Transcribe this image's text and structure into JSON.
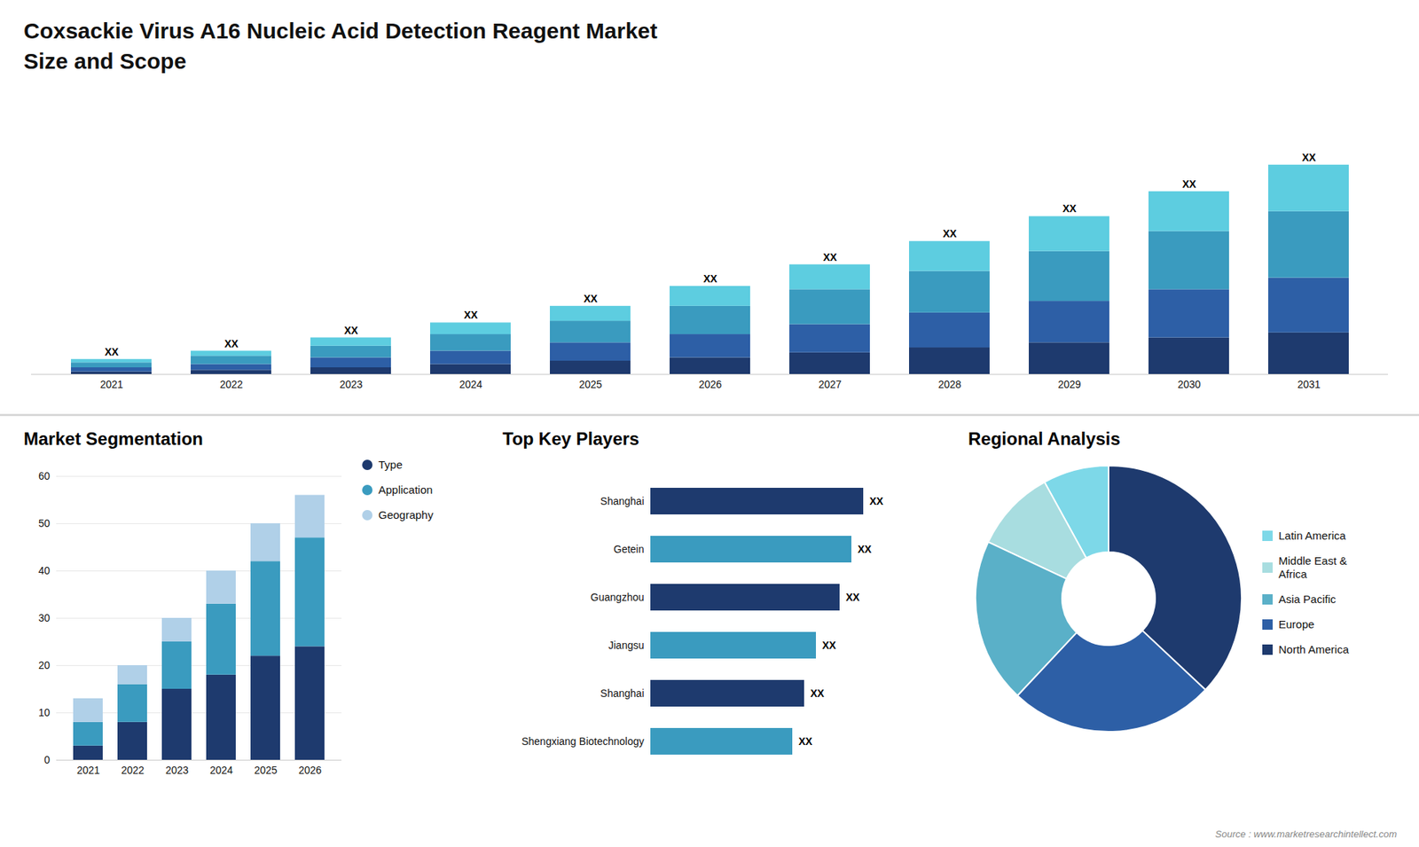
{
  "title": "Coxsackie Virus A16 Nucleic Acid Detection Reagent Market\nSize and Scope",
  "caption": "Source : www.marketresearchintellect.com",
  "chart_data": [
    {
      "type": "bar",
      "stacked": true,
      "categories": [
        "2021",
        "2022",
        "2023",
        "2024",
        "2025",
        "2026",
        "2027",
        "2028",
        "2029",
        "2030",
        "2031"
      ],
      "series": [
        {
          "color": "#1e3a6e",
          "values": [
            1.5,
            2.5,
            4,
            6,
            8,
            10,
            13,
            16,
            19,
            22,
            25
          ]
        },
        {
          "color": "#2d5fa6",
          "values": [
            2.5,
            3.5,
            6,
            8,
            11,
            14,
            17,
            21,
            25,
            29,
            33
          ]
        },
        {
          "color": "#3a9bbf",
          "values": [
            3,
            5,
            7,
            10,
            13,
            17,
            21,
            25,
            30,
            35,
            40
          ]
        },
        {
          "color": "#5dcde0",
          "values": [
            2,
            3,
            5,
            7,
            9,
            12,
            15,
            18,
            21,
            24,
            28
          ]
        }
      ],
      "totals": [
        9,
        14,
        22,
        31,
        41,
        53,
        66,
        80,
        95,
        110,
        126
      ],
      "total_labels": [
        "XX",
        "XX",
        "XX",
        "XX",
        "XX",
        "XX",
        "XX",
        "XX",
        "XX",
        "XX",
        "XX"
      ],
      "data_labels": true,
      "ylim": [
        0,
        157.5
      ],
      "tick_labels": "x",
      "grid": false
    },
    {
      "type": "bar",
      "title": "Market Segmentation",
      "stacked": true,
      "categories": [
        "2021",
        "2022",
        "2023",
        "2024",
        "2025",
        "2026"
      ],
      "series": [
        {
          "name": "Type",
          "color": "#1e3a6e",
          "values": [
            3,
            8,
            15,
            18,
            22,
            24
          ]
        },
        {
          "name": "Application",
          "color": "#3a9bbf",
          "values": [
            5,
            8,
            10,
            15,
            20,
            23
          ]
        },
        {
          "name": "Geography",
          "color": "#b0d0e8",
          "values": [
            5,
            4,
            5,
            7,
            8,
            9
          ]
        }
      ],
      "ylim": [
        0,
        60
      ],
      "yticks": [
        0,
        10,
        20,
        30,
        40,
        50,
        60
      ],
      "grid": true,
      "legend": "right"
    },
    {
      "type": "bar",
      "title": "Top Key Players",
      "orientation": "horizontal",
      "categories": [
        "Shanghai",
        "Getein",
        "Guangzhou",
        "Jiangsu",
        "Shanghai",
        "Shengxiang Biotechnology"
      ],
      "values": [
        9.0,
        8.5,
        8.0,
        7.0,
        6.5,
        6.0
      ],
      "colors": [
        "#1e3a6e",
        "#3a9bbf",
        "#1e3a6e",
        "#3a9bbf",
        "#1e3a6e",
        "#3a9bbf"
      ],
      "data_labels": true,
      "value_labels": [
        "XX",
        "XX",
        "XX",
        "XX",
        "XX",
        "XX"
      ],
      "xlim": [
        0,
        11.25
      ],
      "tick_labels": "y",
      "grid": false
    },
    {
      "type": "pie",
      "title": "Regional Analysis",
      "categories": [
        "Latin America",
        "Middle East &\nAfrica",
        "Asia Pacific",
        "Europe",
        "North America"
      ],
      "values": [
        8,
        10,
        20,
        25,
        37
      ],
      "colors": [
        "#7dd8e8",
        "#a8dde0",
        "#5ab0c8",
        "#2d5fa6",
        "#1e3a6e"
      ],
      "legend": "right"
    }
  ]
}
